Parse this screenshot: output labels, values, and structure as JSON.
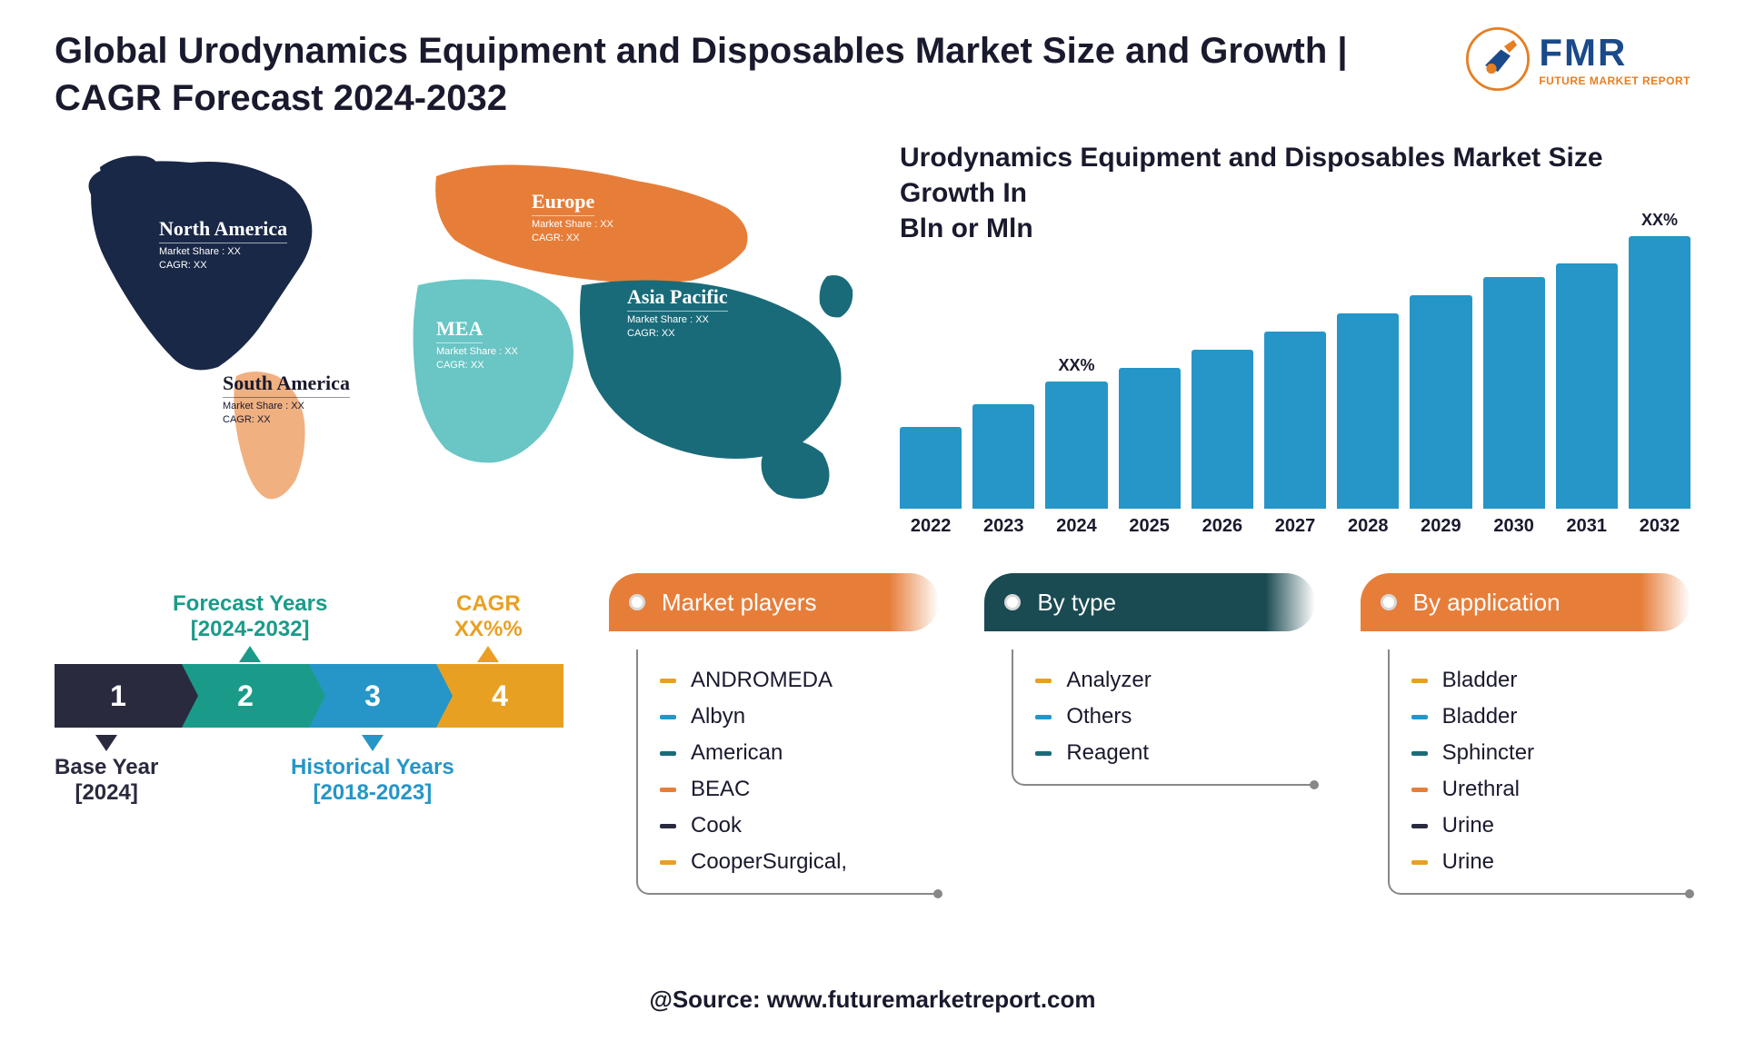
{
  "title": "Global Urodynamics Equipment and Disposables Market Size and Growth | CAGR Forecast 2024-2032",
  "logo": {
    "main": "FMR",
    "sub": "FUTURE MARKET REPORT"
  },
  "colors": {
    "north_america": "#1a2847",
    "south_america": "#f0b080",
    "europe": "#e67e3a",
    "mea": "#6ac5c5",
    "asia_pacific": "#1a6b7a",
    "bar": "#2596c7",
    "players_header": "#e67e3a",
    "type_header": "#1a4a52",
    "application_header": "#e67e3a",
    "tl_seg1": "#2a2a3e",
    "tl_seg2": "#1a9b8a",
    "tl_seg3": "#2596c7",
    "tl_seg4": "#e8a023"
  },
  "regions": {
    "na": {
      "name": "North America",
      "share": "Market Share : XX",
      "cagr": "CAGR: XX"
    },
    "sa": {
      "name": "South America",
      "share": "Market Share : XX",
      "cagr": "CAGR: XX"
    },
    "eu": {
      "name": "Europe",
      "share": "Market Share : XX",
      "cagr": "CAGR: XX"
    },
    "mea": {
      "name": "MEA",
      "share": "Market Share : XX",
      "cagr": "CAGR: XX"
    },
    "ap": {
      "name": "Asia Pacific",
      "share": "Market Share : XX",
      "cagr": "CAGR: XX"
    }
  },
  "chart": {
    "title": "Urodynamics Equipment and Disposables Market Size Growth In\nBln or Mln",
    "years": [
      "2022",
      "2023",
      "2024",
      "2025",
      "2026",
      "2027",
      "2028",
      "2029",
      "2030",
      "2031",
      "2032"
    ],
    "heights": [
      90,
      115,
      140,
      155,
      175,
      195,
      215,
      235,
      255,
      270,
      300
    ],
    "label_2024": "XX%",
    "label_2032": "XX%"
  },
  "timeline": {
    "forecast": {
      "label": "Forecast Years",
      "range": "[2024-2032]"
    },
    "cagr": {
      "label": "CAGR",
      "value": "XX%%"
    },
    "base": {
      "label": "Base Year",
      "range": "[2024]"
    },
    "historical": {
      "label": "Historical Years",
      "range": "[2018-2023]"
    },
    "segments": [
      "1",
      "2",
      "3",
      "4"
    ]
  },
  "categories": {
    "players": {
      "title": "Market players",
      "items": [
        "ANDROMEDA",
        "Albyn",
        "American",
        "BEAC",
        "Cook",
        "CooperSurgical,"
      ],
      "bullet_colors": [
        "#e8a023",
        "#2596c7",
        "#1a6b7a",
        "#e67e3a",
        "#2a2a3e",
        "#e8a023"
      ]
    },
    "type": {
      "title": "By type",
      "items": [
        "Analyzer",
        "Others",
        "Reagent"
      ],
      "bullet_colors": [
        "#e8a023",
        "#2596c7",
        "#1a6b7a"
      ]
    },
    "application": {
      "title": "By application",
      "items": [
        "Bladder",
        "Bladder",
        "Sphincter",
        "Urethral",
        "Urine",
        "Urine"
      ],
      "bullet_colors": [
        "#e8a023",
        "#2596c7",
        "#1a6b7a",
        "#e67e3a",
        "#2a2a3e",
        "#e8a023"
      ]
    }
  },
  "source": "@Source: www.futuremarketreport.com"
}
